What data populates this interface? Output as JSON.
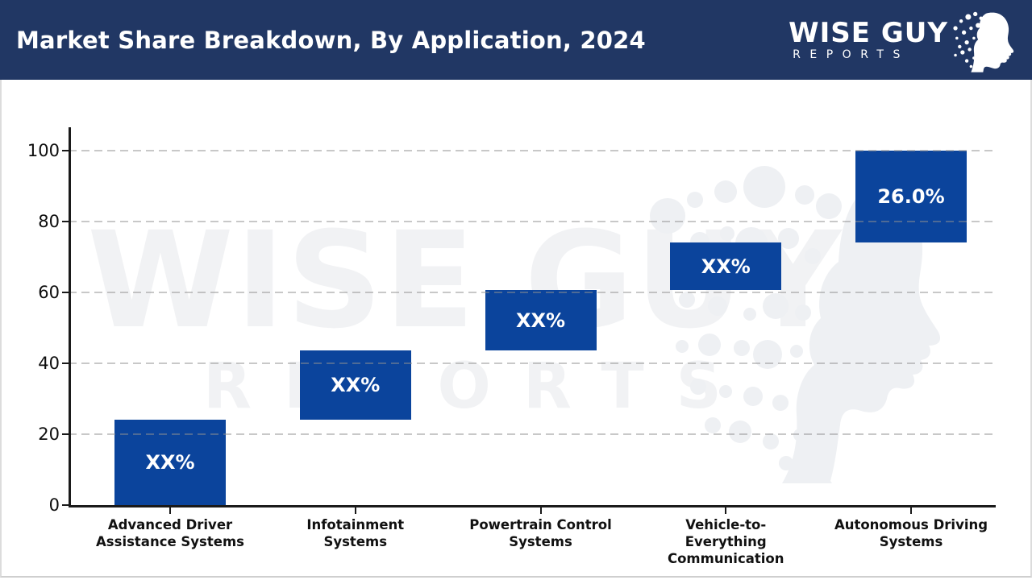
{
  "header": {
    "title": "Market Share Breakdown, By Application, 2024",
    "logo_line1": "WISE GUY",
    "logo_line2": "REPORTS"
  },
  "watermark": {
    "line1": "WISE GUY",
    "line2": "REPORTS"
  },
  "chart_data": {
    "type": "bar",
    "variant": "waterfall",
    "title": "Market Share Breakdown, By Application, 2024",
    "categories": [
      [
        "Advanced Driver",
        "Assistance Systems"
      ],
      [
        "Infotainment",
        "Systems"
      ],
      [
        "Powertrain Control",
        "Systems"
      ],
      [
        "Vehicle-to-",
        "Everything",
        "Communication"
      ],
      [
        "Autonomous Driving",
        "Systems"
      ]
    ],
    "segments": [
      {
        "category": "Advanced Driver Assistance Systems",
        "start": 0,
        "end": 24,
        "value": 24,
        "value_label": "XX%"
      },
      {
        "category": "Infotainment Systems",
        "start": 24,
        "end": 43.5,
        "value": 19.5,
        "value_label": "XX%"
      },
      {
        "category": "Powertrain Control Systems",
        "start": 43.5,
        "end": 60.5,
        "value": 17,
        "value_label": "XX%"
      },
      {
        "category": "Vehicle-to-Everything Communication",
        "start": 60.5,
        "end": 74,
        "value": 13.5,
        "value_label": "XX%"
      },
      {
        "category": "Autonomous Driving Systems",
        "start": 74,
        "end": 100,
        "value": 26,
        "value_label": "26.0%"
      }
    ],
    "ylim": [
      0,
      100
    ],
    "yticks": [
      0,
      20,
      40,
      60,
      80,
      100
    ],
    "xlabel": "",
    "ylabel": "",
    "legend": "none",
    "grid": {
      "axis": "y",
      "style": "dashed",
      "drawn_above_bars": true
    },
    "colors": {
      "bar": "#0b449c",
      "bar_label": "#ffffff",
      "header_bg": "#213764",
      "axis": "#1a1a1a",
      "grid": "#c9c9c9",
      "watermark": "#f1f2f4"
    }
  }
}
